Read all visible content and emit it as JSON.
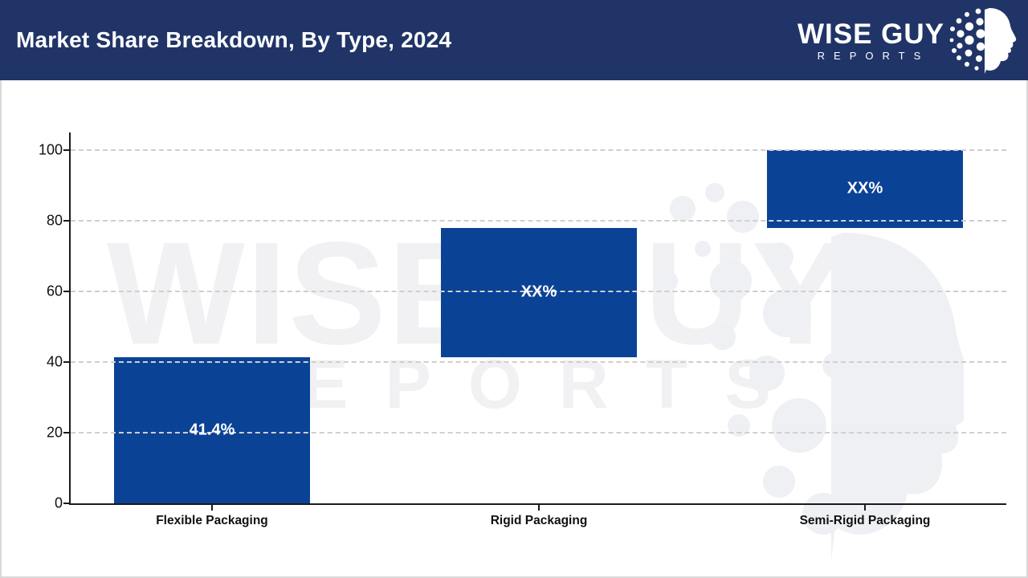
{
  "header": {
    "title": "Market Share Breakdown, By Type, 2024",
    "logo": {
      "line1": "WISE GUY",
      "line2": "REPORTS"
    },
    "bg_color": "#203467"
  },
  "watermark": {
    "line1": "WISE GUY",
    "line2": "REPORTS"
  },
  "chart_data": {
    "type": "bar",
    "subtype": "waterfall",
    "title": "Market Share Breakdown, By Type, 2024",
    "categories": [
      "Flexible Packaging",
      "Rigid Packaging",
      "Semi-Rigid Packaging"
    ],
    "segments": [
      {
        "category": "Flexible Packaging",
        "base": 0,
        "top": 41.4,
        "label": "41.4%"
      },
      {
        "category": "Rigid Packaging",
        "base": 41.4,
        "top": 78,
        "label": "XX%"
      },
      {
        "category": "Semi-Rigid Packaging",
        "base": 78,
        "top": 100,
        "label": "XX%"
      }
    ],
    "xlabel": "",
    "ylabel": "",
    "ylim": [
      0,
      100
    ],
    "yticks": [
      0,
      20,
      40,
      60,
      80,
      100
    ],
    "grid": "horizontal-dashed",
    "legend": "none",
    "bar_color": "#0a4296",
    "bar_label_color": "#ffffff"
  }
}
